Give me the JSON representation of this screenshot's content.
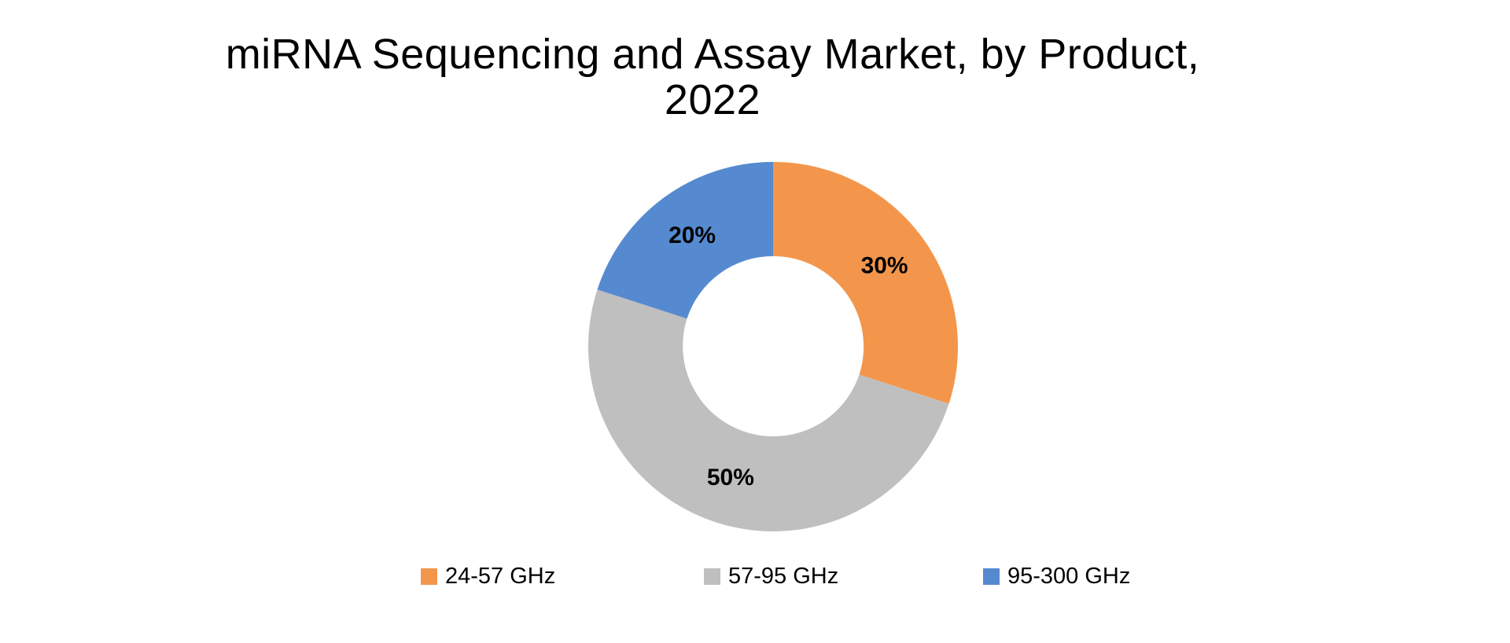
{
  "title": {
    "line1": "miRNA Sequencing and Assay Market, by Product,",
    "line2": "2022"
  },
  "chart_data": {
    "type": "pie",
    "subtype": "donut",
    "title": "miRNA Sequencing and Assay Market, by Product, 2022",
    "categories": [
      "24-57 GHz",
      "57-95 GHz",
      "95-300 GHz"
    ],
    "values": [
      30,
      50,
      20
    ],
    "data_labels": [
      "30%",
      "50%",
      "20%"
    ],
    "colors": [
      "#F3964B",
      "#BFBFBF",
      "#568AD0"
    ],
    "label_color": "#000000",
    "hole_ratio": 0.49,
    "start_angle_deg": 0,
    "direction": "clockwise",
    "legend_position": "bottom",
    "background": "#FFFFFF"
  }
}
